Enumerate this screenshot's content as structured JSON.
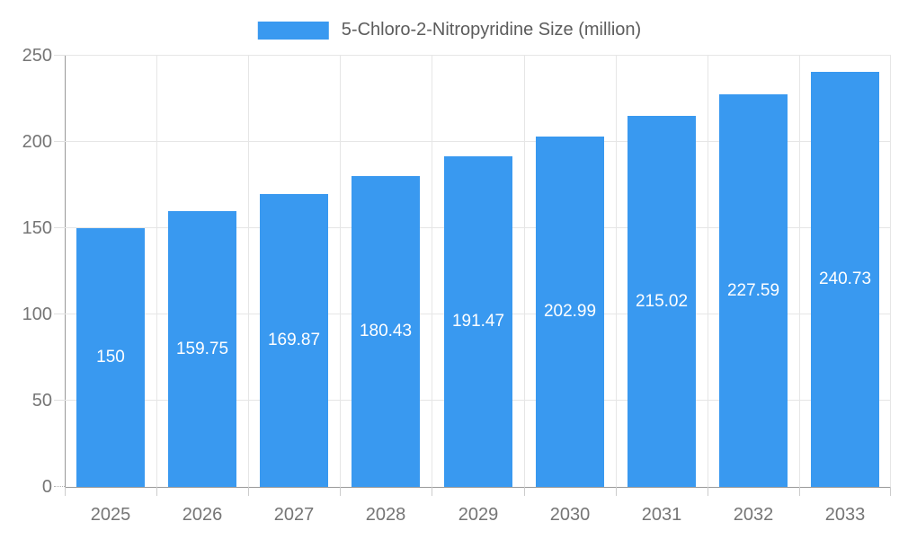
{
  "legend": {
    "label": "5-Chloro-2-Nitropyridine Size (million)",
    "swatch_color": "#3999f0"
  },
  "chart_data": {
    "type": "bar",
    "title": "5-Chloro-2-Nitropyridine Size (million)",
    "categories": [
      "2025",
      "2026",
      "2027",
      "2028",
      "2029",
      "2030",
      "2031",
      "2032",
      "2033"
    ],
    "values": [
      150,
      159.75,
      169.87,
      180.43,
      191.47,
      202.99,
      215.02,
      227.59,
      240.73
    ],
    "value_labels": [
      "150",
      "159.75",
      "169.87",
      "180.43",
      "191.47",
      "202.99",
      "215.02",
      "227.59",
      "240.73"
    ],
    "xlabel": "",
    "ylabel": "",
    "ylim": [
      0,
      250
    ],
    "yticks": [
      0,
      50,
      100,
      150,
      200,
      250
    ],
    "grid": true,
    "legend_position": "top-center",
    "bar_color": "#3999f0",
    "value_label_color": "#ffffff"
  },
  "colors": {
    "bar": "#3999f0",
    "gridline": "#e6e6e6",
    "axis_line": "#999999",
    "tick_mark": "#cccccc",
    "axis_text": "#757575",
    "legend_text": "#5c5c5c",
    "background": "#ffffff"
  }
}
